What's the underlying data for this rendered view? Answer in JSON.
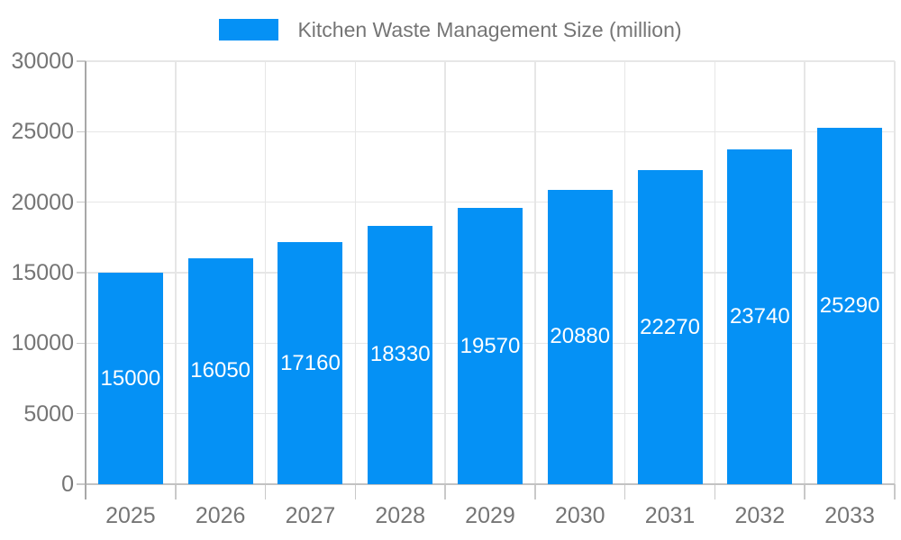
{
  "legend": {
    "label": "Kitchen Waste Management Size (million)"
  },
  "chart_data": {
    "type": "bar",
    "name": "Kitchen Waste Management Size (million)",
    "title": "",
    "xlabel": "",
    "ylabel": "",
    "categories": [
      "2025",
      "2026",
      "2027",
      "2028",
      "2029",
      "2030",
      "2031",
      "2032",
      "2033"
    ],
    "values": [
      15000,
      16050,
      17160,
      18330,
      19570,
      20880,
      22270,
      23740,
      25290
    ],
    "value_labels": [
      "15000",
      "16050",
      "17160",
      "18330",
      "19570",
      "20880",
      "22270",
      "23740",
      "25290"
    ],
    "ylim": [
      0,
      30000
    ],
    "yticks": [
      0,
      5000,
      10000,
      15000,
      20000,
      25000,
      30000
    ],
    "ytick_labels": [
      "0",
      "5000",
      "10000",
      "15000",
      "20000",
      "25000",
      "30000"
    ],
    "grid": true,
    "legend_position": "top-center",
    "value_label_position": "inside-center"
  },
  "colors": {
    "bar": "#0591F5",
    "value_label": "#FFFFFF",
    "grid": "#E6E6E6",
    "y_axis_line": "#A8A8A8",
    "x_axis_line": "#C2C2C2",
    "tick": "#C9C9C9",
    "text": "#757575",
    "background": "#FFFFFF"
  }
}
